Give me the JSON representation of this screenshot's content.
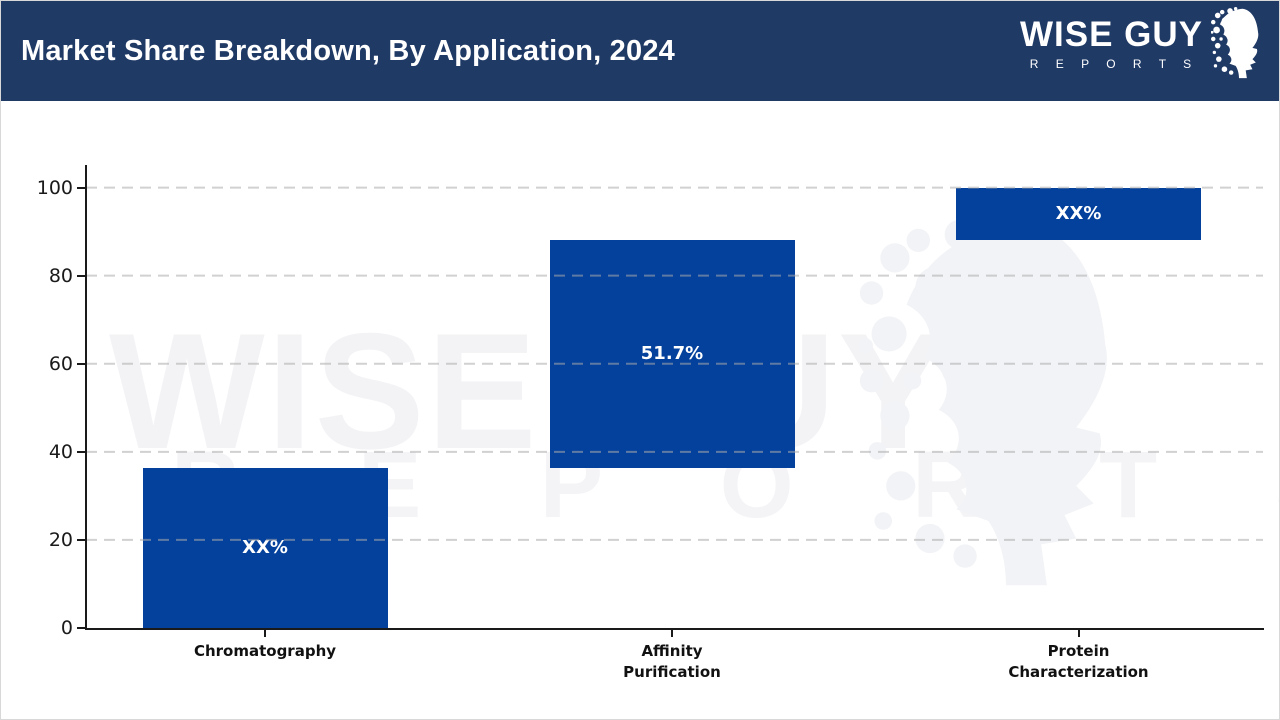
{
  "header": {
    "title": "Market Share Breakdown, By Application, 2024",
    "brand": {
      "line1": "WISE GUY",
      "line2": "R E P O R T S"
    }
  },
  "watermark": {
    "line1": "WISE GUY",
    "line2": "R E P O R T S"
  },
  "chart_data": {
    "type": "bar",
    "subtype": "waterfall",
    "title": "Market Share Breakdown, By Application, 2024",
    "xlabel": "",
    "ylabel": "",
    "ylim": [
      0,
      100
    ],
    "yticks": [
      0,
      20,
      40,
      60,
      80,
      100
    ],
    "grid": "horizontal-dashed",
    "legend": "none",
    "bar_color": "#04419C",
    "label_color": "#ffffff",
    "categories": [
      "Chromatography",
      "Affinity\nPurification",
      "Protein\nCharacterization"
    ],
    "segments": [
      {
        "name": "Chromatography",
        "start": 0,
        "end": 36.4,
        "label": "XX%"
      },
      {
        "name": "Affinity Purification",
        "start": 36.4,
        "end": 88.1,
        "label": "51.7%"
      },
      {
        "name": "Protein Characterization",
        "start": 88.1,
        "end": 100,
        "label": "XX%"
      }
    ]
  },
  "colors": {
    "header_bg": "#203A66",
    "bar": "#04419C",
    "axis": "#1a1a1a",
    "grid": "#ababab",
    "watermark": "#f3f3f6"
  }
}
